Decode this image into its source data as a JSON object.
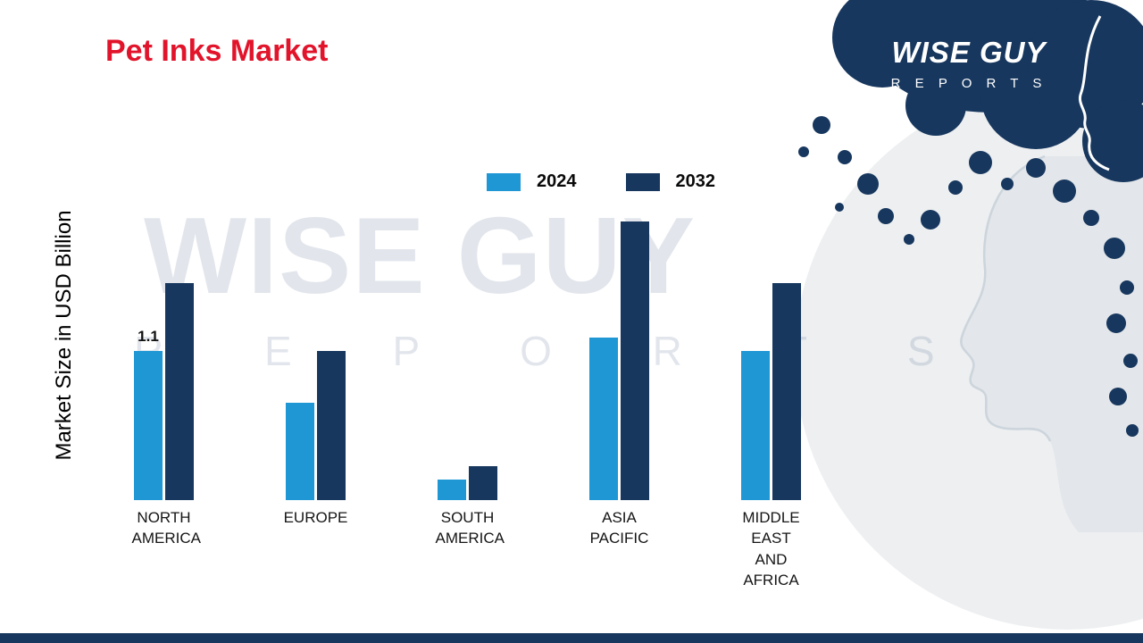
{
  "page": {
    "title": "Pet Inks Market"
  },
  "logo": {
    "line1": "WISE GUY",
    "line2": "R E P O R T S"
  },
  "watermark": {
    "line1": "WISE GUY",
    "line2": "R E P O R T S"
  },
  "chart_data": {
    "type": "bar",
    "title": "Pet Inks Market",
    "xlabel": "",
    "ylabel": "Market Size in USD Billion",
    "categories": [
      "NORTH AMERICA",
      "EUROPE",
      "SOUTH AMERICA",
      "ASIA PACIFIC",
      "MIDDLE EAST AND AFRICA"
    ],
    "series": [
      {
        "name": "2024",
        "color": "#1f97d4",
        "values": [
          1.1,
          0.72,
          0.15,
          1.2,
          1.1
        ]
      },
      {
        "name": "2032",
        "color": "#17375e",
        "values": [
          1.6,
          1.1,
          0.25,
          2.05,
          1.6
        ]
      }
    ],
    "ylim": [
      0,
      2.2
    ],
    "grid": false,
    "legend_position": "top-center",
    "annotations": [
      {
        "text": "1.1",
        "category": "NORTH AMERICA",
        "series": "2024"
      }
    ]
  },
  "colors": {
    "title_red": "#e1142b",
    "bar_2024": "#1f97d4",
    "bar_2032": "#17375e",
    "footer_navy": "#17375e",
    "panel_gray": "#edeff1"
  }
}
